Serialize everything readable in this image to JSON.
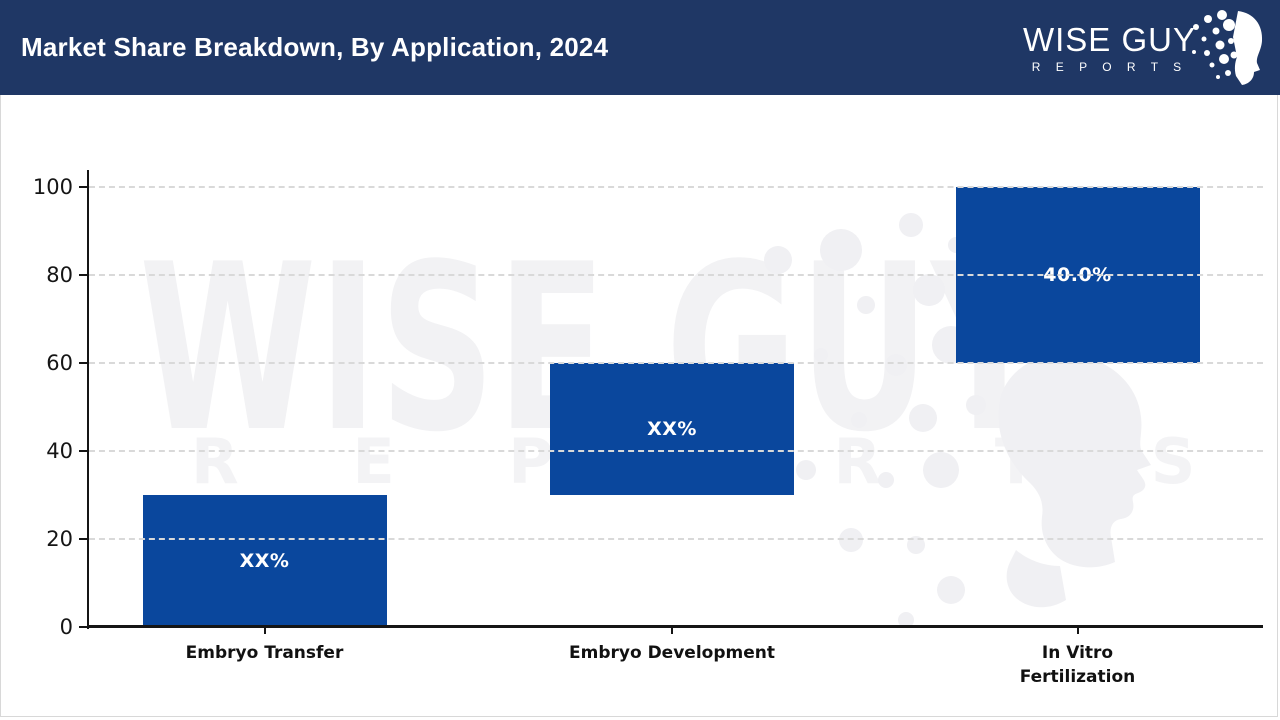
{
  "header": {
    "title": "Market Share Breakdown, By Application, 2024",
    "logo": {
      "brand": "WISE GUY",
      "sub": "R E P O R T S",
      "icon": "dot-face-profile"
    }
  },
  "watermark": {
    "brand": "WISE GUY",
    "sub": "R E P O R T S"
  },
  "colors": {
    "header_bg": "#1F3765",
    "bar": "#0A479D",
    "bar_label": "#FFFFFF",
    "grid": "#D9D9D9",
    "axis": "#151515",
    "watermark": "#F2F2F4"
  },
  "chart_data": {
    "type": "bar",
    "subtype": "floating-range-columns",
    "title": "Market Share Breakdown, By Application, 2024",
    "categories": [
      "Embryo Transfer",
      "Embryo Development",
      "In Vitro Fertilization"
    ],
    "category_lines": [
      [
        "Embryo Transfer"
      ],
      [
        "Embryo Development"
      ],
      [
        "In Vitro",
        "Fertilization"
      ]
    ],
    "bars": [
      {
        "category": "Embryo Transfer",
        "from": 0,
        "to": 30,
        "label": "XX%"
      },
      {
        "category": "Embryo Development",
        "from": 30,
        "to": 60,
        "label": "XX%"
      },
      {
        "category": "In Vitro Fertilization",
        "from": 60,
        "to": 100,
        "label": "40.0%"
      }
    ],
    "yticks": [
      0,
      20,
      40,
      60,
      80,
      100
    ],
    "ylim": [
      0,
      104
    ],
    "xlabel": "",
    "ylabel": "",
    "grid": "horizontal-dashed",
    "legend": "none"
  }
}
